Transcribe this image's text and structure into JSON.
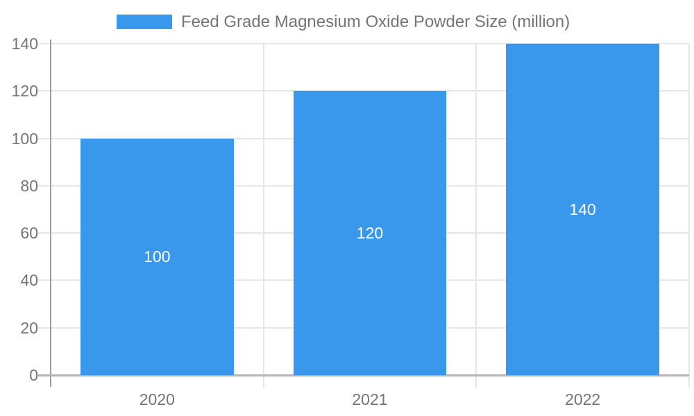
{
  "chart_data": {
    "type": "bar",
    "title": "Feed Grade Magnesium Oxide Powder Size (million)",
    "categories": [
      "2020",
      "2021",
      "2022"
    ],
    "series": [
      {
        "name": "Feed Grade Magnesium Oxide Powder Size (million)",
        "values": [
          100,
          120,
          140
        ]
      }
    ],
    "values": [
      100,
      120,
      140
    ],
    "data_labels": [
      "100",
      "120",
      "140"
    ],
    "xlabel": "",
    "ylabel": "",
    "yticks": [
      0,
      20,
      40,
      60,
      80,
      100,
      120,
      140
    ],
    "ylim": [
      0,
      140
    ],
    "grid": true,
    "legend_position": "top",
    "colors": {
      "bar": "#3998EC",
      "axis_text": "#757575",
      "data_label": "#FFFFFF",
      "gridline": "#E6E6E6",
      "y_axis_line": "#9E9E9E",
      "x_axis_line": "#B3B3B3",
      "background": "#FFFFFF"
    }
  }
}
